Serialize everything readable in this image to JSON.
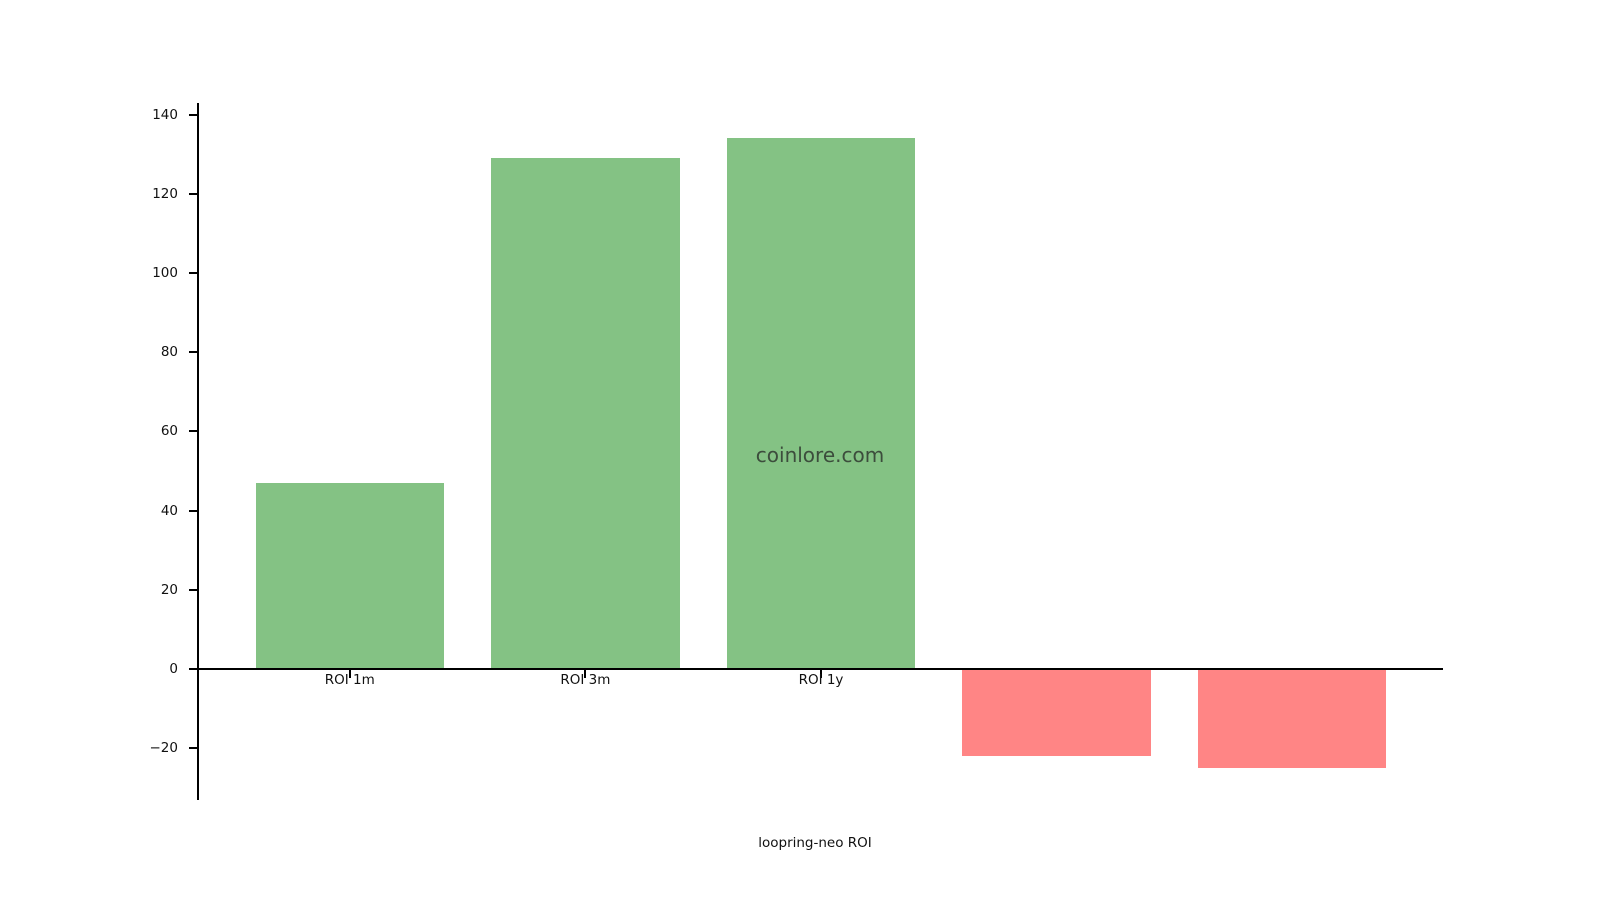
{
  "chart_data": {
    "type": "bar",
    "title": "",
    "xlabel": "loopring-neo ROI",
    "ylabel": "",
    "categories": [
      "ROI 1m",
      "ROI 3m",
      "ROI 1y",
      "",
      ""
    ],
    "values": [
      47,
      129,
      134,
      -22,
      -25
    ],
    "positive_color": "#84c284",
    "negative_color": "#ff8585",
    "yticks": [
      -20,
      0,
      20,
      40,
      60,
      80,
      100,
      120,
      140
    ],
    "ylim": [
      -33,
      143
    ],
    "grid": false,
    "legend": "none",
    "axis_color": "#000000",
    "tick_label_color": "#111111"
  },
  "watermark": {
    "text": "coinlore.com"
  }
}
